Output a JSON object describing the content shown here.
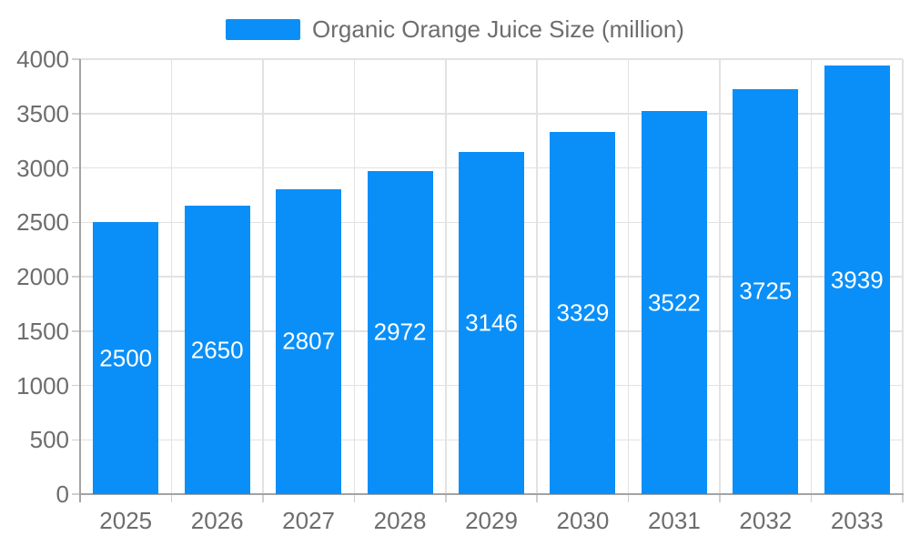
{
  "page": {
    "background": "#ffffff"
  },
  "legend": {
    "label": "Organic Orange Juice Size (million)",
    "swatch_color": "#0a8ff8"
  },
  "chart_data": {
    "type": "bar",
    "title": "Organic Orange Juice Size (million)",
    "categories": [
      "2025",
      "2026",
      "2027",
      "2028",
      "2029",
      "2030",
      "2031",
      "2032",
      "2033"
    ],
    "values": [
      2500,
      2650,
      2807,
      2972,
      3146,
      3329,
      3522,
      3725,
      3939
    ],
    "series": [
      {
        "name": "Organic Orange Juice Size (million)",
        "values": [
          2500,
          2650,
          2807,
          2972,
          3146,
          3329,
          3522,
          3725,
          3939
        ]
      }
    ],
    "xlabel": "",
    "ylabel": "",
    "ylim": [
      0,
      4000
    ],
    "yticks": [
      0,
      500,
      1000,
      1500,
      2000,
      2500,
      3000,
      3500,
      4000
    ],
    "grid": true,
    "legend_position": "top-center",
    "value_labels": "inside-center",
    "colors": {
      "bar": "#0a8ff8",
      "value_label": "#ffffff",
      "axis_text": "#6d6d6d",
      "grid_line": "#e2e2e2",
      "axis_line": "#a3a3a3",
      "tick": "#cfcfcf"
    }
  }
}
